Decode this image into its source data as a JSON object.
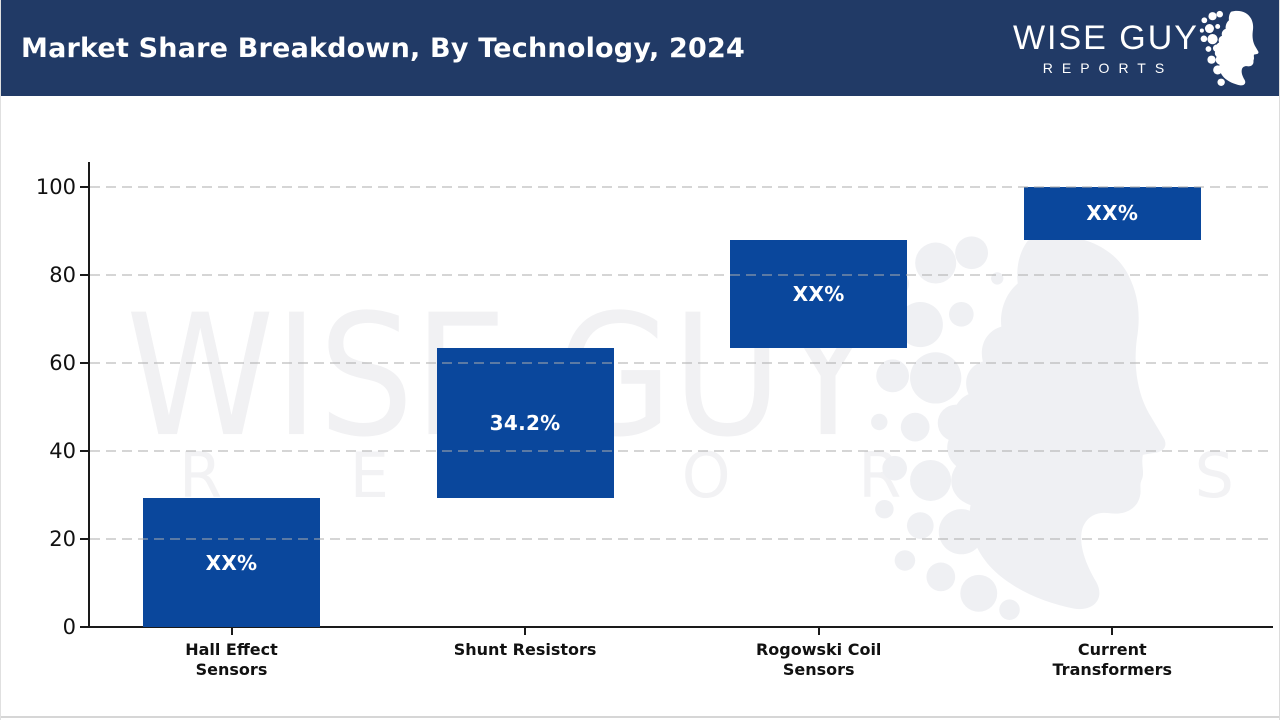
{
  "header": {
    "title": "Market Share Breakdown, By Technology, 2024",
    "brand_line1": "WISE GUY",
    "brand_line2": "REPORTS",
    "bg_color": "#213a66"
  },
  "watermark": {
    "line1": "WISE GUY",
    "line2": "R E P O R T S"
  },
  "chart_data": {
    "type": "bar",
    "subtype": "floating-waterfall",
    "title": "Market Share Breakdown, By Technology, 2024",
    "categories": [
      "Hall Effect Sensors",
      "Shunt Resistors",
      "Rogowski Coil Sensors",
      "Current Transformers"
    ],
    "category_display": [
      "Hall Effect\nSensors",
      "Shunt Resistors",
      "Rogowski Coil\nSensors",
      "Current\nTransformers"
    ],
    "segments": [
      {
        "category": "Hall Effect Sensors",
        "start": 0,
        "end": 29.3,
        "label": "XX%"
      },
      {
        "category": "Shunt Resistors",
        "start": 29.3,
        "end": 63.5,
        "label": "34.2%"
      },
      {
        "category": "Rogowski Coil Sensors",
        "start": 63.5,
        "end": 88.0,
        "label": "XX%"
      },
      {
        "category": "Current Transformers",
        "start": 88.0,
        "end": 100.0,
        "label": "XX%"
      }
    ],
    "ylim": [
      0,
      100
    ],
    "yticks": [
      0,
      20,
      40,
      60,
      80,
      100
    ],
    "xlabel": "",
    "ylabel": "",
    "grid": "horizontal-dashed",
    "legend": "none",
    "bar_color": "#0a479c",
    "bar_label_color": "#ffffff"
  }
}
